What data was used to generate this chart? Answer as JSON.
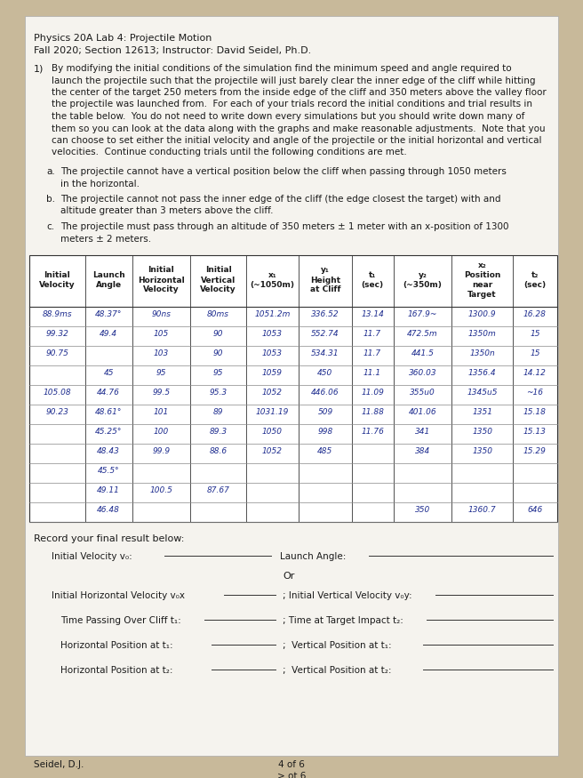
{
  "bg_color": "#c8b99a",
  "paper_color": "#f5f3ee",
  "title_line1": "Physics 20A Lab 4: Projectile Motion",
  "title_line2": "Fall 2020; Section 12613; Instructor: David Seidel, Ph.D.",
  "question_text": "By modifying the initial conditions of the simulation find the minimum speed and angle required to\nlaunch the projectile such that the projectile will just barely clear the inner edge of the cliff while hitting\nthe center of the target 250 meters from the inside edge of the cliff and 350 meters above the valley floor\nthe projectile was launched from.  For each of your trials record the initial conditions and trial results in\nthe table below.  You do not need to write down every simulations but you should write down many of\nthem so you can look at the data along with the graphs and make reasonable adjustments.  Note that you\ncan choose to set either the initial velocity and angle of the projectile or the initial horizontal and vertical\nvelocities.  Continue conducting trials until the following conditions are met.",
  "cond_a": "The projectile cannot have a vertical position below the cliff when passing through 1050 meters\nin the horizontal.",
  "cond_b": "The projectile cannot not pass the inner edge of the cliff (the edge closest the target) with and\naltitude greater than 3 meters above the cliff.",
  "cond_c": "The projectile must pass through an altitude of 350 meters ± 1 meter with an x-position of 1300\nmeters ± 2 meters.",
  "col_headers_line1": [
    "Initial",
    "Launch",
    "Initial",
    "Initial",
    "x₁",
    "y₁",
    "t₁",
    "y₂",
    "x₂",
    "t₂"
  ],
  "col_headers_line2": [
    "Velocity",
    "Angle",
    "Horizontal",
    "Vertical",
    "(~1050m)",
    "Height",
    "(sec)",
    "(~350m)",
    "Position",
    "(sec)"
  ],
  "col_headers_line3": [
    "",
    "",
    "Velocity",
    "Velocity",
    "",
    "at Cliff",
    "",
    "",
    "near",
    ""
  ],
  "col_headers_line4": [
    "",
    "",
    "",
    "",
    "",
    "",
    "",
    "",
    "Target",
    ""
  ],
  "table_rows": [
    [
      "88.9ms",
      "48.37°",
      "90ns",
      "80ms",
      "1051.2m",
      "336.52",
      "13.14",
      "167.9~",
      "1300.9",
      "16.28"
    ],
    [
      "99.32",
      "49.4",
      "105",
      "90",
      "1053",
      "552.74",
      "11.7",
      "472.5m",
      "1350m",
      "15"
    ],
    [
      "90.75",
      "",
      "103",
      "90",
      "1053",
      "534.31",
      "11.7",
      "441.5",
      "1350n",
      "15"
    ],
    [
      "",
      "45",
      "95",
      "95",
      "1059",
      "450",
      "11.1",
      "360.03",
      "1356.4",
      "14.12"
    ],
    [
      "105.08",
      "44.76",
      "99.5",
      "95.3",
      "1052",
      "446.06",
      "11.09",
      "355u0",
      "1345u5",
      "~16"
    ],
    [
      "90.23",
      "48.61°",
      "101",
      "89",
      "1031.19",
      "509",
      "11.88",
      "401.06",
      "1351",
      "15.18"
    ],
    [
      "",
      "45.25°",
      "100",
      "89.3",
      "1050",
      "998",
      "11.76",
      "341",
      "1350",
      "15.13"
    ],
    [
      "",
      "48.43",
      "99.9",
      "88.6",
      "1052",
      "485",
      "",
      "384",
      "1350",
      "15.29"
    ],
    [
      "",
      "45.5°",
      "",
      "",
      "",
      "",
      "",
      "",
      "",
      ""
    ],
    [
      "",
      "49.11",
      "100.5",
      "87.67",
      "",
      "",
      "",
      "",
      "",
      ""
    ],
    [
      "",
      "46.48",
      "",
      "",
      "",
      "",
      "",
      "350",
      "1360.7",
      "646"
    ]
  ],
  "record_text": "Record your final result below:",
  "footer_left": "Seidel, D.J.",
  "footer_page1": "4 of 6",
  "footer_page2": "> ot 6"
}
